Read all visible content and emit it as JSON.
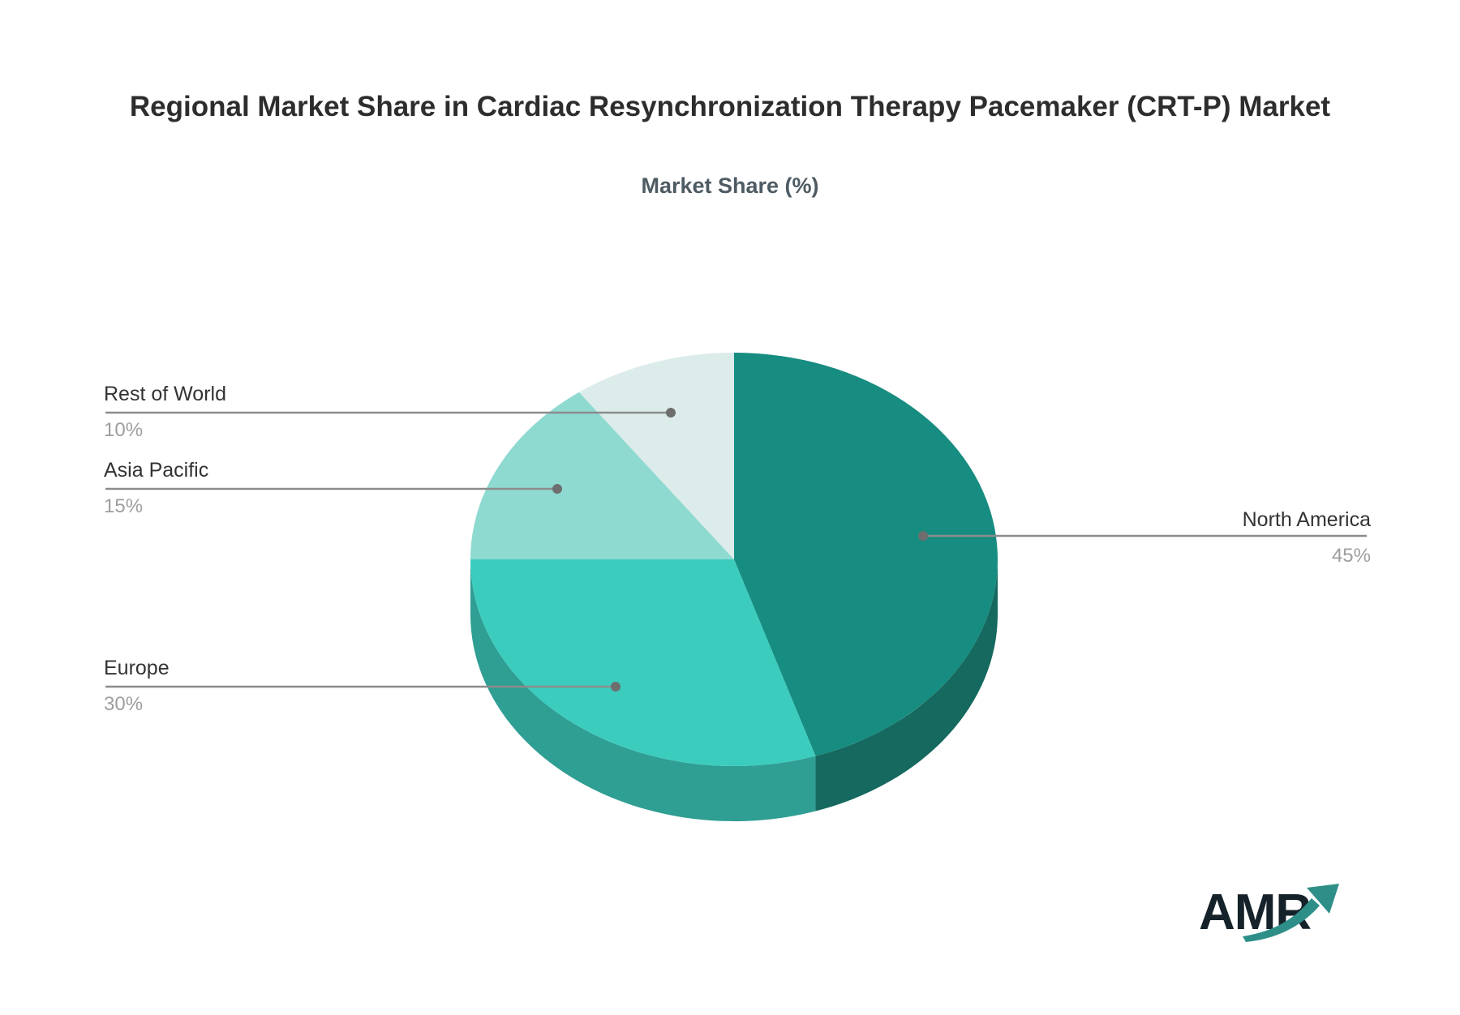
{
  "header": {
    "title": "Regional Market Share in Cardiac Resynchronization Therapy Pacemaker (CRT-P) Market",
    "subtitle": "Market Share (%)"
  },
  "chart_data": {
    "type": "pie",
    "style": "3d",
    "title": "Regional Market Share in Cardiac Resynchronization Therapy Pacemaker (CRT-P) Market",
    "subtitle": "Market Share (%)",
    "unit": "%",
    "start_angle_deg": 0,
    "direction": "clockwise",
    "legend_position": "callout-labels",
    "slices": [
      {
        "label": "North America",
        "value": 45,
        "display": "45%",
        "color": "#178C80",
        "side_color": "#15695E"
      },
      {
        "label": "Europe",
        "value": 30,
        "display": "30%",
        "color": "#3CCCBE",
        "side_color": "#2F9E93"
      },
      {
        "label": "Asia Pacific",
        "value": 15,
        "display": "15%",
        "color": "#8ED9D0"
      },
      {
        "label": "Rest of World",
        "value": 10,
        "display": "10%",
        "color": "#DCECEA"
      }
    ]
  },
  "colors": {
    "leader_line": "#8C8C8C",
    "dot": "#6E6E6E",
    "label_text": "#333333",
    "percent_text": "#9E9E9E"
  },
  "logo": {
    "text": "AMR",
    "text_color": "#16222A",
    "arrow_color": "#2E8F88"
  }
}
